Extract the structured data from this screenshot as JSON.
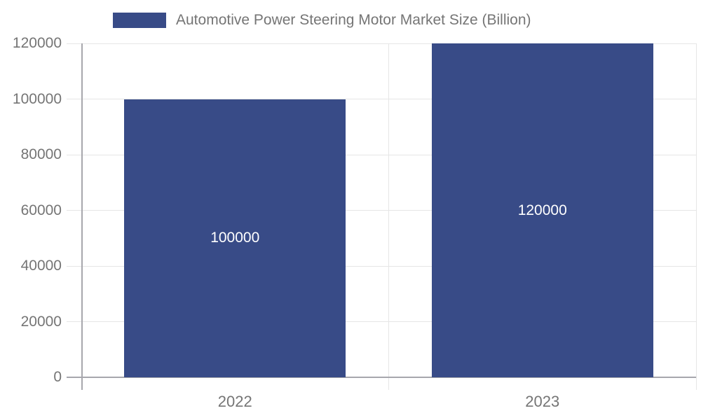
{
  "legend": {
    "label": "Automotive Power Steering Motor Market Size (Billion)"
  },
  "colors": {
    "bar_fill": "#384B87",
    "grid_line": "#e6e6e6",
    "axis_line": "#a7a7ad",
    "tick_label": "#757575",
    "value_label": "#ffffff",
    "legend_text": "#757575"
  },
  "chart_data": {
    "type": "bar",
    "title": "Automotive Power Steering Motor Market Size (Billion)",
    "categories": [
      "2022",
      "2023"
    ],
    "series": [
      {
        "name": "Automotive Power Steering Motor Market Size (Billion)",
        "values": [
          100000,
          120000
        ]
      }
    ],
    "value_labels": [
      "100000",
      "120000"
    ],
    "xlabel": "",
    "ylabel": "",
    "ylim": [
      0,
      120000
    ],
    "ytick_interval": 20000,
    "ytick_labels": [
      "0",
      "20000",
      "40000",
      "60000",
      "80000",
      "100000",
      "120000"
    ],
    "grid": true,
    "legend_position": "top"
  }
}
